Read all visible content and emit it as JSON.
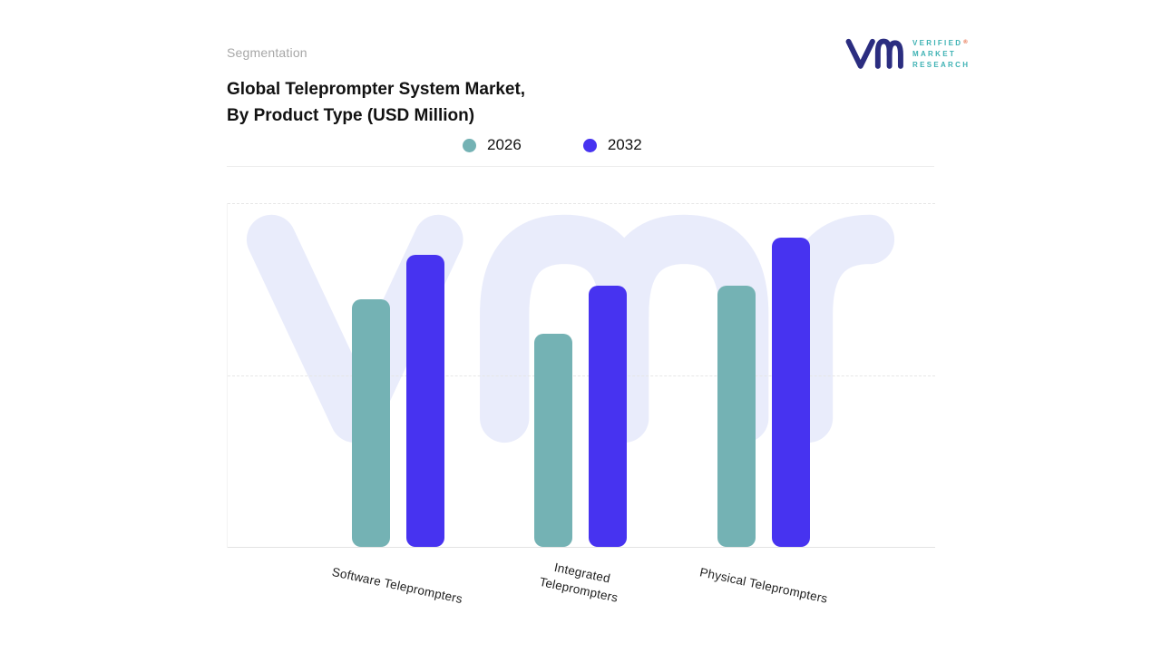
{
  "header": {
    "eyebrow": "Segmentation",
    "title_line1": "Global Teleprompter System Market,",
    "title_line2": "By Product Type (USD Million)"
  },
  "logo": {
    "line1": "VERIFIED",
    "line2": "MARKET",
    "line3": "RESEARCH",
    "registered": "®",
    "mark_color": "#2b2d80",
    "text_color": "#3eb2b4"
  },
  "legend": [
    {
      "label": "2026",
      "color": "#74b2b4"
    },
    {
      "label": "2032",
      "color": "#4733f0"
    }
  ],
  "colors": {
    "series_2026": "#74b2b4",
    "series_2032": "#4733f0",
    "watermark": "#e9ecfb",
    "gridline": "#e6e6e6"
  },
  "chart_data": {
    "type": "bar",
    "title": "Global Teleprompter System Market, By Product Type (USD Million)",
    "categories": [
      "Software Teleprompters",
      "Integrated Teleprompters",
      "Physical Teleprompters"
    ],
    "tick_label_lines": [
      [
        "Software Teleprompters"
      ],
      [
        "Integrated",
        "Teleprompters"
      ],
      [
        "Physical Teleprompters"
      ]
    ],
    "series": [
      {
        "name": "2026",
        "color": "#74b2b4",
        "values": [
          72,
          62,
          76
        ]
      },
      {
        "name": "2032",
        "color": "#4733f0",
        "values": [
          85,
          76,
          90
        ]
      }
    ],
    "xlabel": "",
    "ylabel": "USD Million",
    "ylim": [
      0,
      100
    ],
    "grid": "horizontal-dashed",
    "legend_position": "top",
    "legend_entries": [
      "2026",
      "2032"
    ]
  }
}
